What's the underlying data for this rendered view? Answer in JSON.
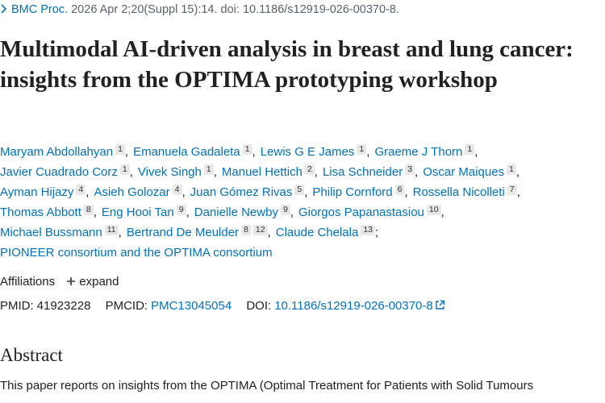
{
  "citation": {
    "journal": "BMC Proc.",
    "details": " 2026 Apr 2;20(Suppl 15):14. doi: 10.1186/s12919-026-00370-8."
  },
  "title": "Multimodal AI-driven analysis in breast and lung cancer: insights from the OPTIMA prototyping workshop",
  "authors": [
    [
      {
        "name": "Maryam Abdollahyan",
        "affiliations": [
          1
        ],
        "separator": ","
      },
      {
        "name": "Emanuela Gadaleta",
        "affiliations": [
          1
        ],
        "separator": ","
      },
      {
        "name": "Lewis G E James",
        "affiliations": [
          1
        ],
        "separator": ","
      },
      {
        "name": "Graeme J Thorn",
        "affiliations": [
          1
        ],
        "separator": ","
      }
    ],
    [
      {
        "name": "Javier Cuadrado Corz",
        "affiliations": [
          1
        ],
        "separator": ","
      },
      {
        "name": "Vivek Singh",
        "affiliations": [
          1
        ],
        "separator": ","
      },
      {
        "name": "Manuel Hettich",
        "affiliations": [
          2
        ],
        "separator": ","
      },
      {
        "name": "Lisa Schneider",
        "affiliations": [
          3
        ],
        "separator": ","
      },
      {
        "name": "Oscar Maiques",
        "affiliations": [
          1
        ],
        "separator": ","
      }
    ],
    [
      {
        "name": "Ayman Hijazy",
        "affiliations": [
          4
        ],
        "separator": ","
      },
      {
        "name": "Asieh Golozar",
        "affiliations": [
          4
        ],
        "separator": ","
      },
      {
        "name": "Juan Gómez Rivas",
        "affiliations": [
          5
        ],
        "separator": ","
      },
      {
        "name": "Philip Cornford",
        "affiliations": [
          6
        ],
        "separator": ","
      },
      {
        "name": "Rossella Nicolleti",
        "affiliations": [
          7
        ],
        "separator": ","
      }
    ],
    [
      {
        "name": "Thomas Abbott",
        "affiliations": [
          8
        ],
        "separator": ","
      },
      {
        "name": "Eng Hooi Tan",
        "affiliations": [
          9
        ],
        "separator": ","
      },
      {
        "name": "Danielle Newby",
        "affiliations": [
          9
        ],
        "separator": ","
      },
      {
        "name": "Giorgos Papanastasiou",
        "affiliations": [
          10
        ],
        "separator": ","
      }
    ],
    [
      {
        "name": "Michael Bussmann",
        "affiliations": [
          11
        ],
        "separator": ","
      },
      {
        "name": "Bertrand De Meulder",
        "affiliations": [
          8,
          12
        ],
        "separator": ","
      },
      {
        "name": "Claude Chelala",
        "affiliations": [
          13
        ],
        "separator": ";"
      }
    ]
  ],
  "collective": "PIONEER consortium and the OPTIMA consortium",
  "affiliations": {
    "label": "Affiliations",
    "expand": "expand"
  },
  "identifiers": {
    "pmid_label": "PMID:",
    "pmid": "41923228",
    "pmcid_label": "PMCID:",
    "pmcid": "PMC13045054",
    "doi_label": "DOI:",
    "doi": "10.1186/s12919-026-00370-8"
  },
  "abstract": {
    "heading": "Abstract",
    "text": "This paper reports on insights from the OPTIMA (Optimal Treatment for Patients with Solid Tumours"
  }
}
